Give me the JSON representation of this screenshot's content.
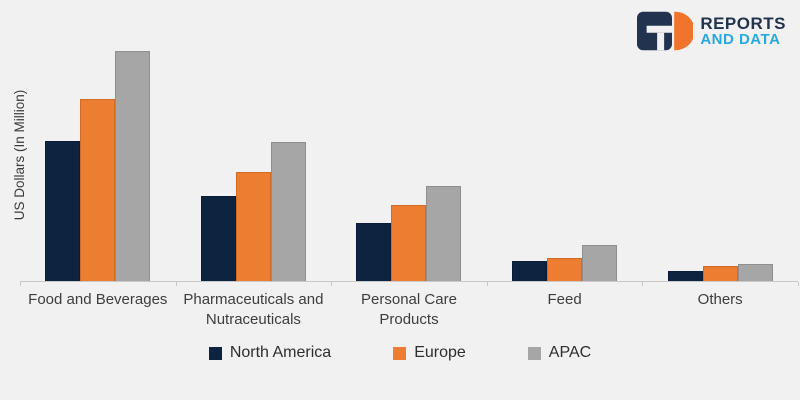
{
  "logo": {
    "text_primary": "REPORTS",
    "text_secondary": "AND DATA",
    "mark_navy": "#22334f",
    "mark_orange": "#f1742c",
    "text_blue": "#29a8df"
  },
  "chart_data": {
    "type": "bar",
    "title": "",
    "ylabel": "US Dollars (In Million)",
    "xlabel": "",
    "categories": [
      "Food and Beverages",
      "Pharmaceuticals and Nutraceuticals",
      "Personal Care Products",
      "Feed",
      "Others"
    ],
    "series": [
      {
        "name": "North America",
        "color": "#0d2440",
        "border": "#0b1d36",
        "values": [
          140,
          85,
          58,
          20,
          10
        ]
      },
      {
        "name": "Europe",
        "color": "#ed7d31",
        "border": "#d06c25",
        "values": [
          182,
          109,
          76,
          23,
          15
        ]
      },
      {
        "name": "APAC",
        "color": "#a6a6a6",
        "border": "#8f8f8f",
        "values": [
          230,
          139,
          95,
          36,
          17
        ]
      }
    ],
    "ylim": [
      0,
      250
    ],
    "grid": false,
    "legend_position": "bottom",
    "axis_color": "#c8c8c8",
    "background": "#f1f1f1"
  }
}
